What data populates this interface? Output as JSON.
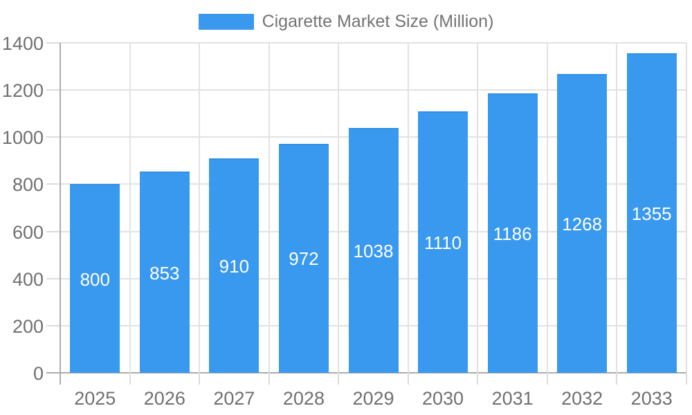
{
  "legend": {
    "label": "Cigarette Market Size (Million)"
  },
  "chart_data": {
    "type": "bar",
    "title": "Cigarette Market Size (Million)",
    "categories": [
      "2025",
      "2026",
      "2027",
      "2028",
      "2029",
      "2030",
      "2031",
      "2032",
      "2033"
    ],
    "series": [
      {
        "name": "Cigarette Market Size (Million)",
        "values": [
          800,
          853,
          910,
          972,
          1038,
          1110,
          1186,
          1268,
          1355
        ]
      }
    ],
    "value_labels": [
      800,
      853,
      910,
      972,
      1038,
      1110,
      1186,
      1268,
      1355
    ],
    "xlabel": "",
    "ylabel": "",
    "ylim": [
      0,
      1400
    ],
    "ytick_step": 200,
    "ytick_labels": [
      "0",
      "200",
      "400",
      "600",
      "800",
      "1000",
      "1200",
      "1400"
    ],
    "grid": true,
    "legend_position": "top-center",
    "value_label_position": "inside-center"
  },
  "colors": {
    "bar_fill": "#3999EF",
    "bar_edge": "#2E8FE4",
    "grid_line": "#E2E2E2",
    "zero_line": "#ABABAB",
    "tick_mark": "#DCDCDC",
    "axis_text": "#707070",
    "legend_text": "#737373",
    "value_text": "#FFFFFF",
    "background": "#FFFFFF"
  }
}
